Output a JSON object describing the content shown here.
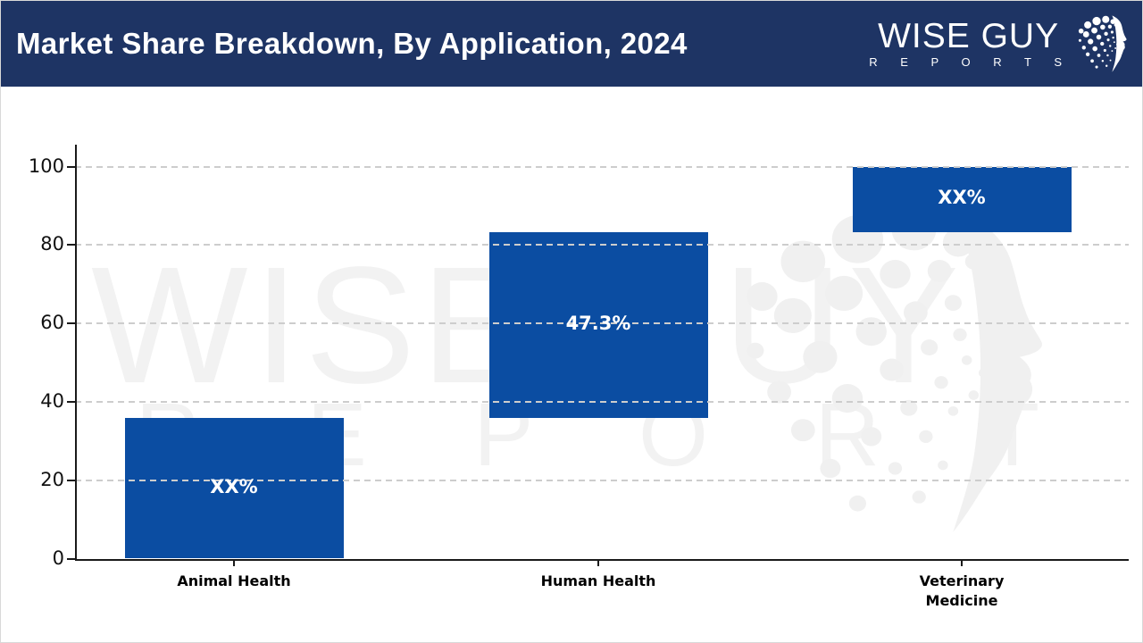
{
  "header": {
    "title": "Market Share Breakdown, By Application, 2024",
    "logo_name": "WISE GUY",
    "logo_sub": "R E P O R T S"
  },
  "watermark": {
    "line1": "WISE GUY",
    "line2": "R E P O R T S"
  },
  "colors": {
    "header_bg": "#1e3464",
    "bar": "#0b4da2",
    "grid": "#cdcdcd",
    "axis": "#1a1a1a",
    "watermark": "#f2f2f2",
    "border": "#d9d9d9"
  },
  "chart_data": {
    "type": "bar",
    "subtype": "waterfall",
    "title": "Market Share Breakdown, By Application, 2024",
    "categories": [
      "Animal Health",
      "Human Health",
      "Veterinary Medicine"
    ],
    "segments": [
      {
        "category": "Animal Health",
        "start": 0,
        "end": 36,
        "label": "XX%"
      },
      {
        "category": "Human Health",
        "start": 36,
        "end": 83.3,
        "label": "47.3%"
      },
      {
        "category": "Veterinary Medicine",
        "start": 83.3,
        "end": 100,
        "label": "XX%"
      }
    ],
    "ylim": [
      0,
      100
    ],
    "yticks": [
      0,
      20,
      40,
      60,
      80,
      100
    ],
    "grid": "horizontal-dashed-over-bars",
    "legend": null,
    "bar_color": "#0b4da2",
    "bar_label_color": "#ffffff"
  }
}
